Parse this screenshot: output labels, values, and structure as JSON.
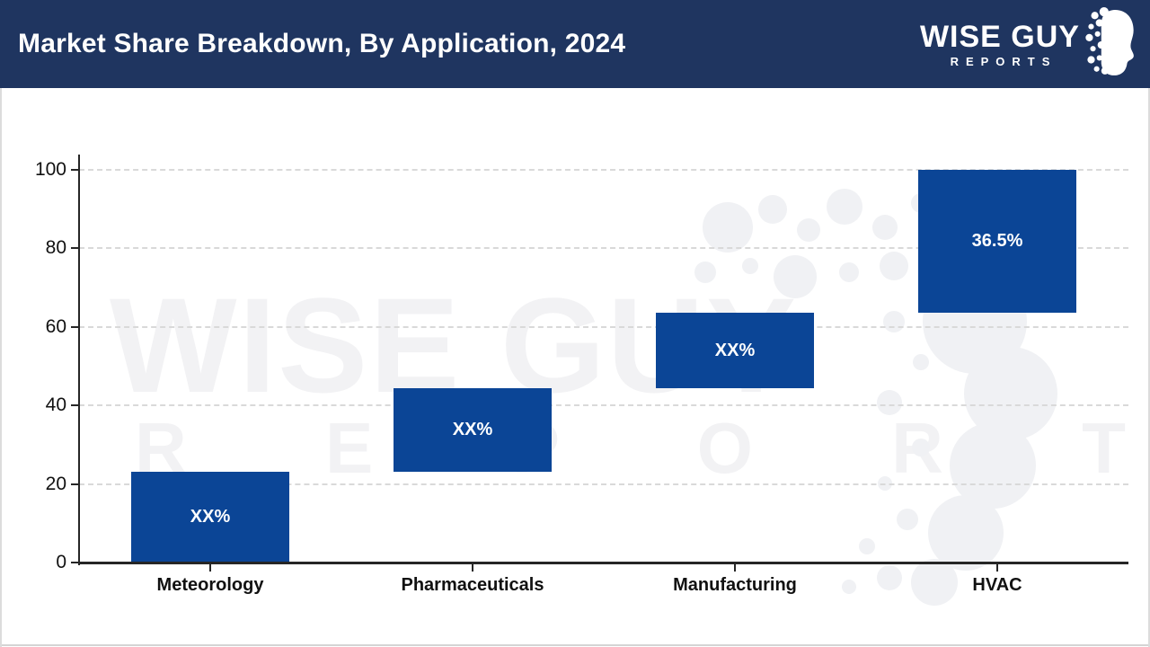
{
  "header": {
    "title": "Market Share Breakdown, By Application, 2024",
    "logo": {
      "line1": "WISE GUY",
      "line2": "REPORTS"
    }
  },
  "watermark": {
    "line1": "WISE GUY",
    "line2": "R E P O R T S"
  },
  "colors": {
    "header_bg": "#1f3560",
    "bar_fill": "#0b4596",
    "grid": "#d9d9d9",
    "axis": "#262626",
    "watermark": "#f2f2f4"
  },
  "chart_data": {
    "type": "bar",
    "subtype": "waterfall",
    "title": "Market Share Breakdown, By Application, 2024",
    "categories": [
      "Meteorology",
      "Pharmaceuticals",
      "Manufacturing",
      "HVAC"
    ],
    "segments": [
      {
        "category": "Meteorology",
        "start": 0,
        "end": 23.2,
        "label": "XX%"
      },
      {
        "category": "Pharmaceuticals",
        "start": 23.2,
        "end": 44.3,
        "label": "XX%"
      },
      {
        "category": "Manufacturing",
        "start": 44.3,
        "end": 63.5,
        "label": "XX%"
      },
      {
        "category": "HVAC",
        "start": 63.5,
        "end": 100,
        "label": "36.5%"
      }
    ],
    "values_shown": [
      "XX%",
      "XX%",
      "XX%",
      "36.5%"
    ],
    "xlabel": "",
    "ylabel": "",
    "ylim": [
      0,
      100
    ],
    "yticks": [
      0,
      20,
      40,
      60,
      80,
      100
    ],
    "grid": "horizontal-dashed",
    "legend": "none"
  }
}
